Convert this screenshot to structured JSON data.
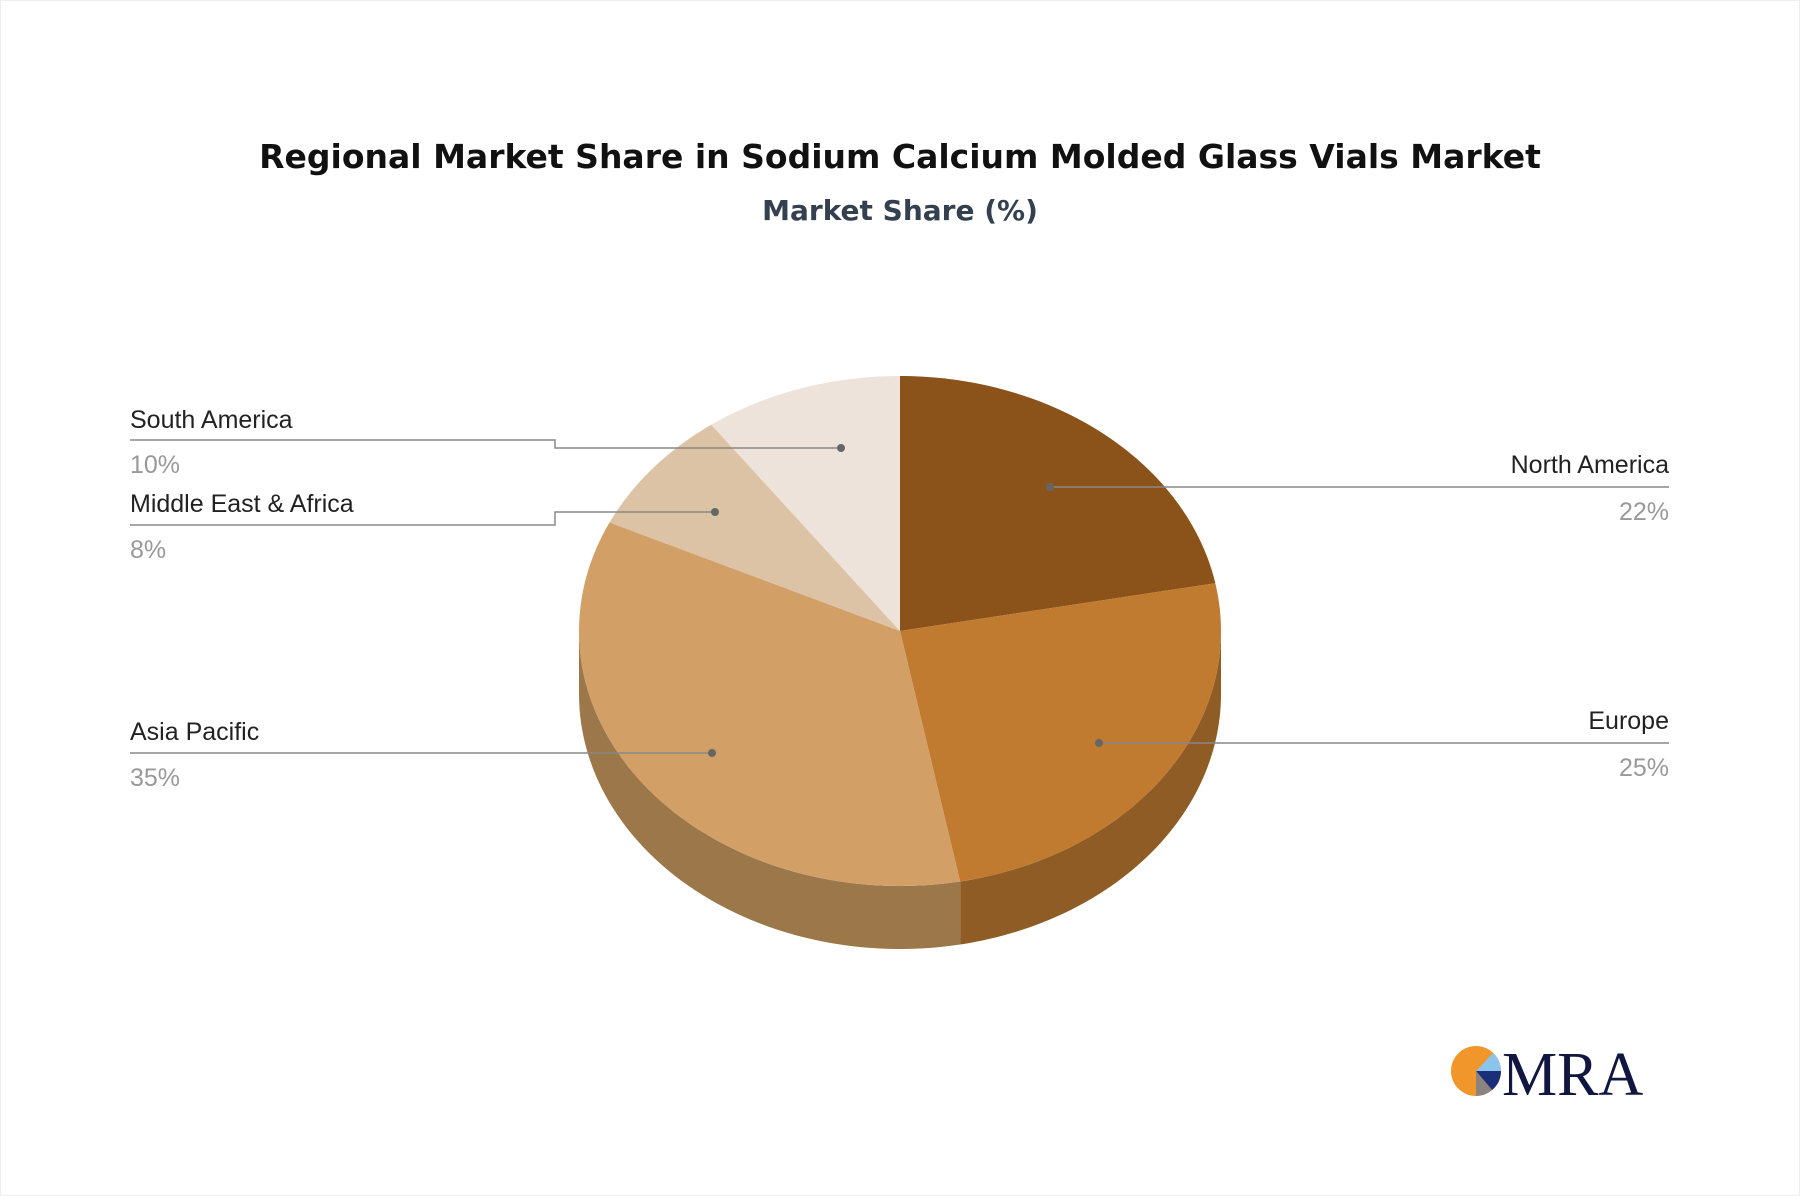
{
  "chart_data": {
    "type": "pie",
    "title": "Regional Market Share in Sodium Calcium Molded Glass Vials Market",
    "subtitle": "Market Share (%)",
    "slices": [
      {
        "label": "North America",
        "value": 22,
        "pct_label": "22%",
        "color": "#8B5319",
        "side_color": "#7a4714"
      },
      {
        "label": "Europe",
        "value": 25,
        "pct_label": "25%",
        "color": "#C07B30",
        "side_color": "#8E5C24"
      },
      {
        "label": "Asia Pacific",
        "value": 35,
        "pct_label": "35%",
        "color": "#D2A066",
        "side_color": "#9C7749"
      },
      {
        "label": "Middle East & Africa",
        "value": 8,
        "pct_label": "8%",
        "color": "#DDC3A5",
        "side_color": "#a8917a"
      },
      {
        "label": "South America",
        "value": 10,
        "pct_label": "10%",
        "color": "#EEE3DA",
        "side_color": "#b8aca2"
      }
    ],
    "style": "3d-pie"
  },
  "logo": {
    "text": "MRA"
  }
}
